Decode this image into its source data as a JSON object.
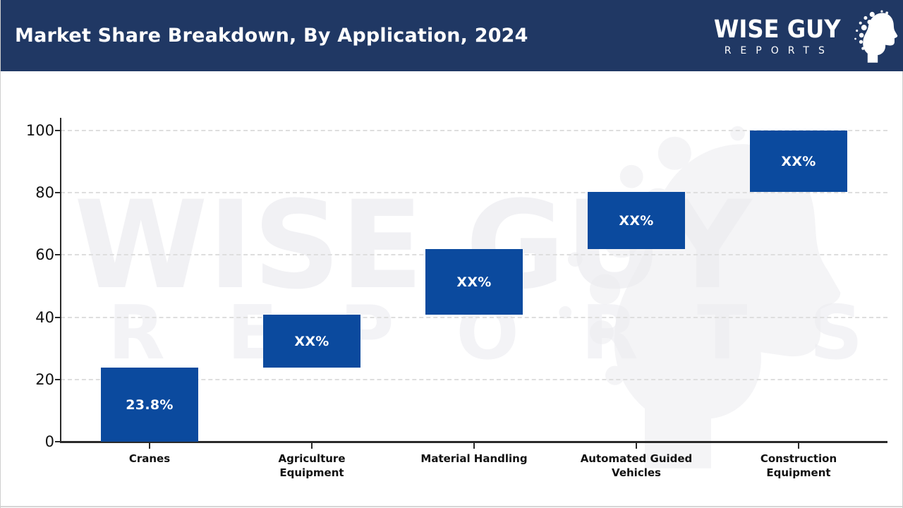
{
  "header": {
    "title": "Market Share Breakdown, By Application, 2024",
    "brand": {
      "line1": "WISE GUY",
      "line2": "REPORTS"
    }
  },
  "watermark": {
    "line1": "WISE GUY",
    "line2": "REPORTS"
  },
  "colors": {
    "header_bg": "#203864",
    "bar_blue": "#0b4a9e",
    "grid_gray": "#dedede",
    "axis_dark": "#2a2a2a",
    "watermark_gray": "#f1f1f4"
  },
  "chart_data": {
    "type": "bar",
    "subtype": "waterfall",
    "title": "Market Share Breakdown, By Application, 2024",
    "categories": [
      "Cranes",
      "Agriculture\nEquipment",
      "Material Handling",
      "Automated Guided\nVehicles",
      "Construction\nEquipment"
    ],
    "segments": [
      {
        "category": "Cranes",
        "label": "23.8%",
        "start": 0,
        "end": 23.8
      },
      {
        "category": "Agriculture Equipment",
        "label": "XX%",
        "start": 23.8,
        "end": 40.8
      },
      {
        "category": "Material Handling",
        "label": "XX%",
        "start": 40.8,
        "end": 61.8
      },
      {
        "category": "Automated Guided Vehicles",
        "label": "XX%",
        "start": 61.8,
        "end": 80.2
      },
      {
        "category": "Construction Equipment",
        "label": "XX%",
        "start": 80.2,
        "end": 100
      }
    ],
    "yticks": [
      0,
      20,
      40,
      60,
      80,
      100
    ],
    "ylim": [
      0,
      100
    ],
    "xlabel": "",
    "ylabel": "",
    "grid": "horizontal-dashed",
    "legend": "none",
    "bar_color": "#0b4a9e",
    "bar_label_color": "#ffffff"
  }
}
